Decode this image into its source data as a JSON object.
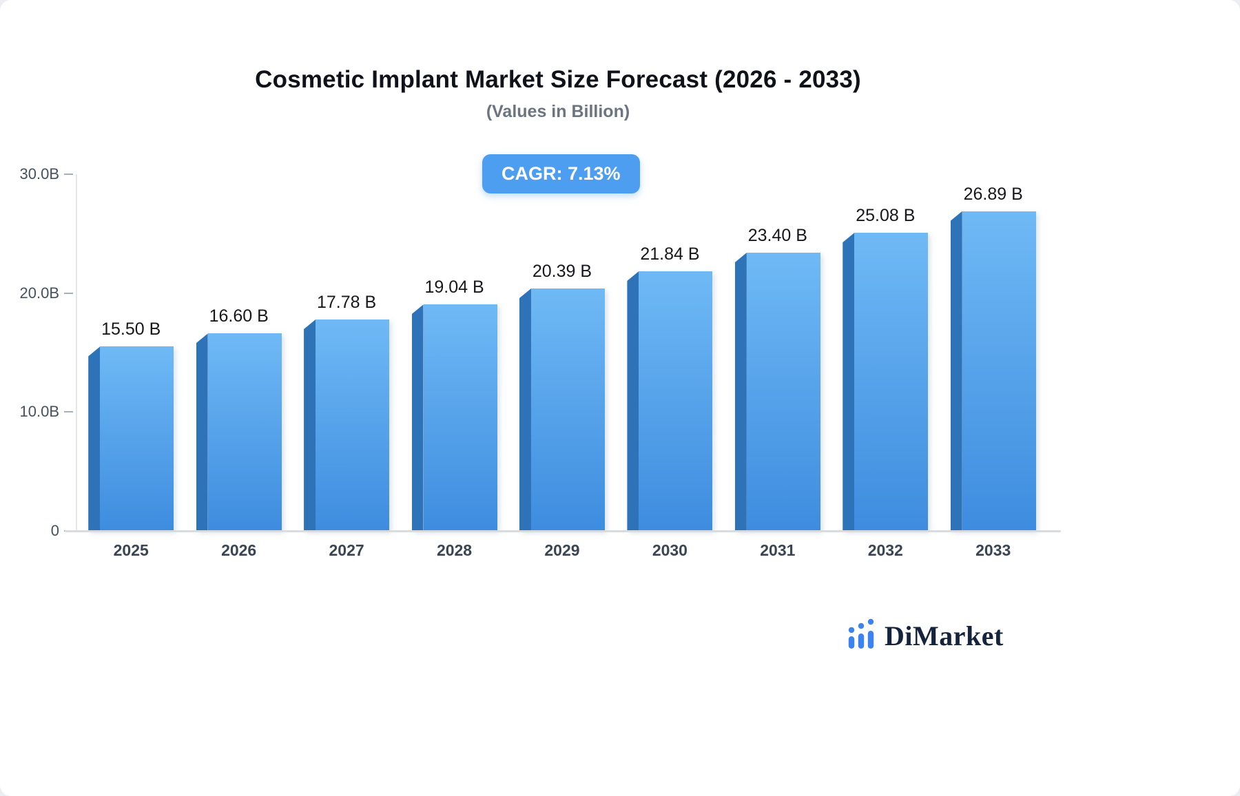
{
  "page": {
    "title": "Cosmetic Implant Market Size Forecast (2026 - 2033)",
    "subtitle": "(Values in Billion)"
  },
  "badge": {
    "label": "CAGR: 7.13%"
  },
  "logo": {
    "brand": "DiMarket"
  },
  "chart_data": {
    "type": "bar",
    "title": "Cosmetic Implant Market Size Forecast (2026 - 2033)",
    "subtitle": "(Values in Billion)",
    "cagr_label": "CAGR: 7.13%",
    "categories": [
      "2025",
      "2026",
      "2027",
      "2028",
      "2029",
      "2030",
      "2031",
      "2032",
      "2033"
    ],
    "values": [
      15.5,
      16.6,
      17.78,
      19.04,
      20.39,
      21.84,
      23.4,
      25.08,
      26.89
    ],
    "value_labels": [
      "15.50 B",
      "16.60 B",
      "17.78 B",
      "19.04 B",
      "20.39 B",
      "21.84 B",
      "23.40 B",
      "25.08 B",
      "26.89 B"
    ],
    "xlabel": "",
    "ylabel": "",
    "ylim": [
      0,
      30
    ],
    "yticks": [
      {
        "value": 0,
        "label": "0"
      },
      {
        "value": 10,
        "label": "10.0B"
      },
      {
        "value": 20,
        "label": "20.0B"
      },
      {
        "value": 30,
        "label": "30.0B"
      }
    ],
    "grid": false,
    "legend_position": "none",
    "colors": {
      "bar_top": "#6FB9F5",
      "bar_bottom": "#3E8CDF",
      "bar_side": "#2E72B8",
      "badge_bg": "#4D9EF0",
      "value_text": "#17181C",
      "axis_text": "#45515F",
      "logo_blue": "#3C83F0",
      "logo_text": "#16233D"
    }
  }
}
